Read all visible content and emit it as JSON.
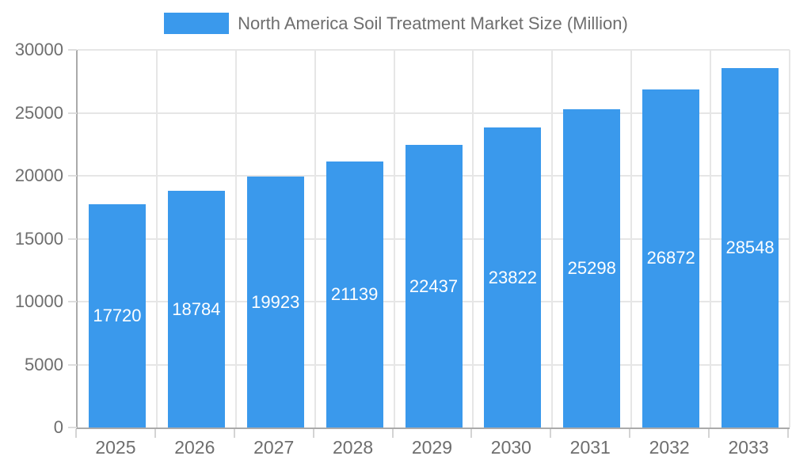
{
  "legend": {
    "label": "North America Soil Treatment Market Size (Million)"
  },
  "chart_data": {
    "type": "bar",
    "title": "North America Soil Treatment Market Size (Million)",
    "series_name": "North America Soil Treatment Market Size (Million)",
    "categories": [
      "2025",
      "2026",
      "2027",
      "2028",
      "2029",
      "2030",
      "2031",
      "2032",
      "2033"
    ],
    "values": [
      17720,
      18784,
      19923,
      21139,
      22437,
      23822,
      25298,
      26872,
      28548
    ],
    "xlabel": "",
    "ylabel": "",
    "ylim": [
      0,
      30000
    ],
    "yticks": [
      0,
      5000,
      10000,
      15000,
      20000,
      25000,
      30000
    ],
    "grid": true,
    "legend_position": "top",
    "value_label_position": "inside-center"
  },
  "colors": {
    "bar": "#3a99ec",
    "grid": "#e6e6e6",
    "axis": "#aaaaaa",
    "tick": "#dddddd",
    "text": "#6e6e6e",
    "value_label": "#ffffff",
    "background": "#ffffff"
  }
}
